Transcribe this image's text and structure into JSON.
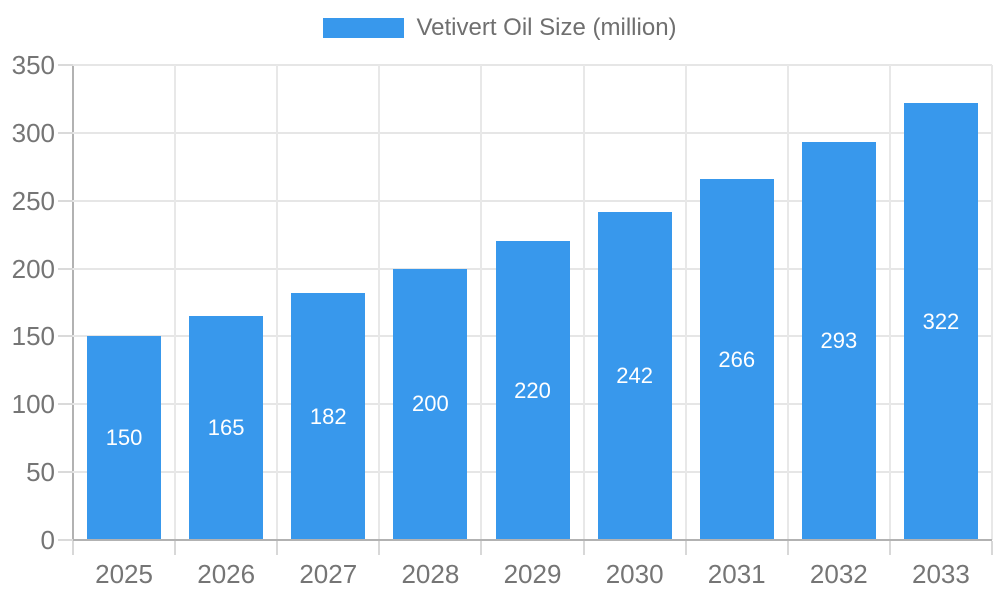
{
  "legend": {
    "label": "Vetivert Oil Size (million)",
    "swatch_color": "#3898ec"
  },
  "chart_data": {
    "type": "bar",
    "title": "",
    "categories": [
      "2025",
      "2026",
      "2027",
      "2028",
      "2029",
      "2030",
      "2031",
      "2032",
      "2033"
    ],
    "series": [
      {
        "name": "Vetivert Oil Size (million)",
        "values": [
          150,
          165,
          182,
          200,
          220,
          242,
          266,
          293,
          322
        ]
      }
    ],
    "value_labels": [
      "150",
      "165",
      "182",
      "200",
      "220",
      "242",
      "266",
      "293",
      "322"
    ],
    "xlabel": "",
    "ylabel": "",
    "ylim": [
      0,
      350
    ],
    "ytick_step": 50,
    "yticks": [
      "0",
      "50",
      "100",
      "150",
      "200",
      "250",
      "300",
      "350"
    ],
    "grid": "on",
    "legend_position": "top-center",
    "colors": {
      "bar": "#3898ec",
      "bar_value_text": "#ffffff",
      "axis_text": "#757575",
      "legend_text": "#6f6f6f",
      "gridline": "#e6e6e6",
      "axis_line": "#b2b2b2",
      "tick": "#d8d8d8",
      "background": "#ffffff"
    }
  }
}
